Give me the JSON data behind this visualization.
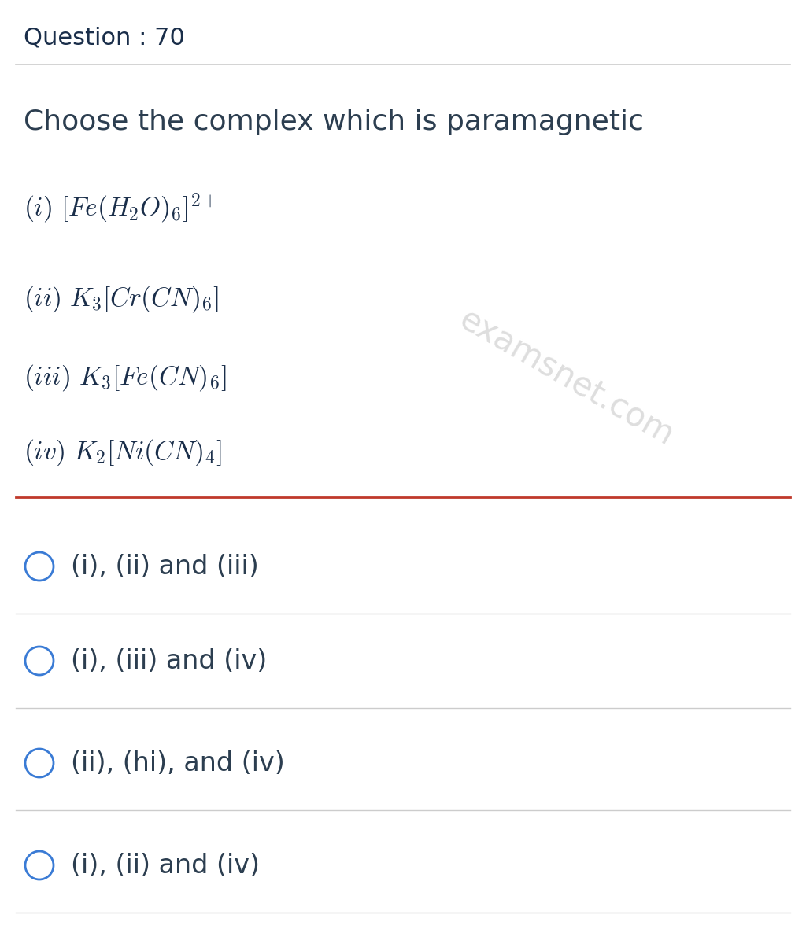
{
  "question_label": "Question : 70",
  "question_text": "Choose the complex which is paramagnetic",
  "option_texts": [
    "(i) $[Fe(H_2O)_6]^{2+}$",
    "(ii) $K_3[Cr(CN)_6]$",
    "(iii) $K_3[Fe(CN)_6]$",
    "(iv) $K_2[Ni(CN)_4]$"
  ],
  "answers": [
    "(i), (ii) and (iii)",
    "(i), (iii) and (iv)",
    "(ii), (hi), and (iv)",
    "(i), (ii) and (iv)"
  ],
  "bg_color": "#ffffff",
  "header_color": "#1a2e4a",
  "question_color": "#2c3e50",
  "option_color": "#1a2e4a",
  "answer_color": "#2c3e50",
  "separator_color": "#cccccc",
  "red_separator_color": "#c0392b",
  "circle_color": "#3a7bd5",
  "watermark_color": "#c8c8c8",
  "watermark_text": "examsnet.com",
  "question_label_fontsize": 22,
  "question_text_fontsize": 26,
  "option_fontsize": 24,
  "answer_fontsize": 24
}
